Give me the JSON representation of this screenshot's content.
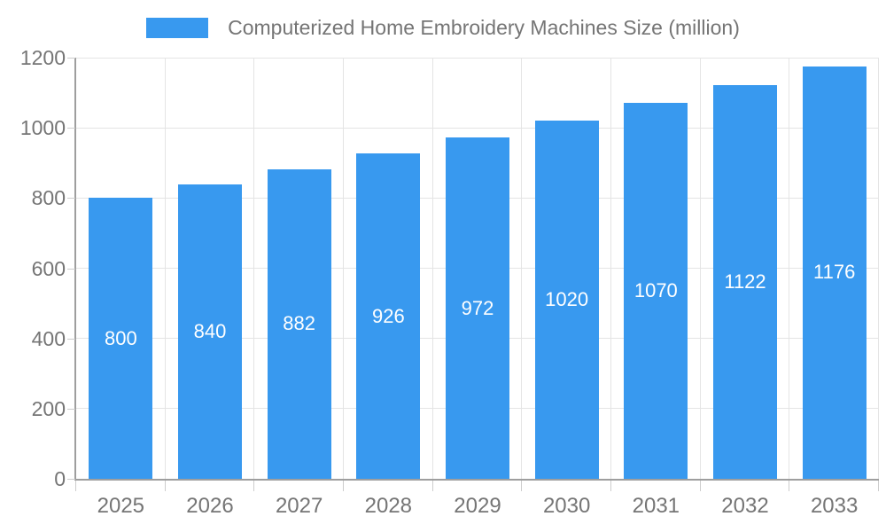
{
  "legend": {
    "label": "Computerized Home Embroidery Machines Size (million)"
  },
  "chart_data": {
    "type": "bar",
    "title": "Computerized Home Embroidery Machines Size (million)",
    "series_name": "Computerized Home Embroidery Machines Size (million)",
    "categories": [
      "2025",
      "2026",
      "2027",
      "2028",
      "2029",
      "2030",
      "2031",
      "2032",
      "2033"
    ],
    "values": [
      800,
      840,
      882,
      926,
      972,
      1020,
      1070,
      1122,
      1176
    ],
    "xlabel": "",
    "ylabel": "",
    "ylim": [
      0,
      1200
    ],
    "yticks": [
      0,
      200,
      400,
      600,
      800,
      1000,
      1200
    ],
    "grid": true,
    "legend_position": "top",
    "colors": {
      "bar": "#3899ef",
      "value_label": "#ffffff",
      "axis_text": "#757575",
      "gridline": "#e4e4e4",
      "axis_line": "#9e9e9e",
      "tick_mark": "#cccccc",
      "background": "#ffffff"
    }
  }
}
